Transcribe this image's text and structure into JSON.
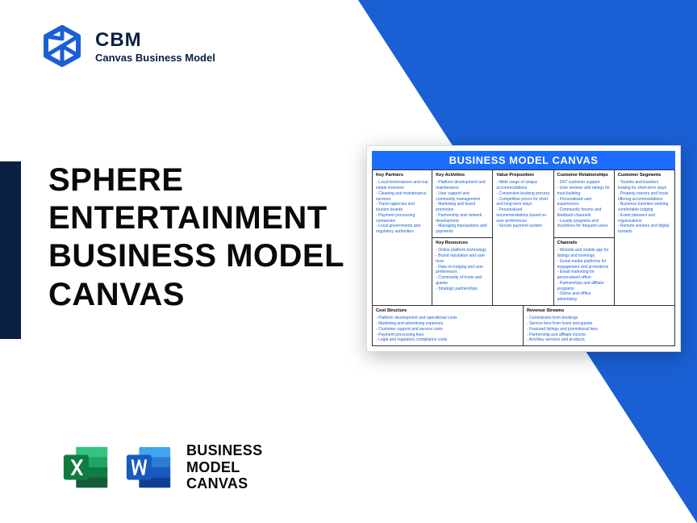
{
  "header": {
    "logo_title": "CBM",
    "logo_subtitle": "Canvas Business Model"
  },
  "main_title": "SPHERE ENTERTAINMENT BUSINESS MODEL CANVAS",
  "canvas": {
    "title": "BUSINESS MODEL CANVAS",
    "blocks": {
      "key_partners": {
        "heading": "Key Partners",
        "items": [
          "Local homeowners and real estate investors",
          "Cleaning and maintenance services",
          "Travel agencies and tourism boards",
          "Payment processing companies",
          "Local governments and regulatory authorities"
        ]
      },
      "key_activities": {
        "heading": "Key Activities",
        "items": [
          "Platform development and maintenance",
          "User support and community management",
          "Marketing and brand promotion",
          "Partnership and network development",
          "Managing transactions and payments"
        ]
      },
      "key_resources": {
        "heading": "Key Resources",
        "items": [
          "Online platform technology",
          "Brand reputation and user trust",
          "Data on lodging and user preferences",
          "Community of hosts and guests",
          "Strategic partnerships"
        ]
      },
      "value_proposition": {
        "heading": "Value Proposition",
        "items": [
          "Wide range of unique accommodations",
          "Convenient booking process",
          "Competitive prices for short and long-term stays",
          "Personalized recommendations based on user preferences",
          "Secure payment system"
        ]
      },
      "customer_relationships": {
        "heading": "Customer Relationships",
        "items": [
          "24/7 customer support",
          "User reviews and ratings for trust-building",
          "Personalized user experiences",
          "Community forums and feedback channels",
          "Loyalty programs and incentives for frequent users"
        ]
      },
      "channels": {
        "heading": "Channels",
        "items": [
          "Website and mobile app for listings and bookings",
          "Social media platforms for engagement and promotions",
          "Email marketing for personalized offers",
          "Partnerships and affiliate programs",
          "Online and offline advertising"
        ]
      },
      "customer_segments": {
        "heading": "Customer Segments",
        "items": [
          "Tourists and travelers looking for short-term stays",
          "Property owners and hosts offering accommodations",
          "Business travelers seeking comfortable lodging",
          "Event planners and organizations",
          "Remote workers and digital nomads"
        ]
      },
      "cost_structure": {
        "heading": "Cost Structure",
        "items": [
          "Platform development and operational costs",
          "Marketing and advertising expenses",
          "Customer support and service costs",
          "Payment processing fees",
          "Legal and regulatory compliance costs"
        ]
      },
      "revenue_streams": {
        "heading": "Revenue Streams",
        "items": [
          "Commission from bookings",
          "Service fees from hosts and guests",
          "Featured listings and promotional fees",
          "Partnership and affiliate income",
          "Ancillary services and products"
        ]
      }
    }
  },
  "footer": {
    "bmc_label_l1": "BUSINESS",
    "bmc_label_l2": "MODEL",
    "bmc_label_l3": "CANVAS"
  },
  "colors": {
    "brand_blue": "#1a5fd4",
    "dark_navy": "#0a1f44",
    "canvas_blue": "#1a6dff",
    "excel_green": "#107c41",
    "word_blue": "#185abd"
  }
}
